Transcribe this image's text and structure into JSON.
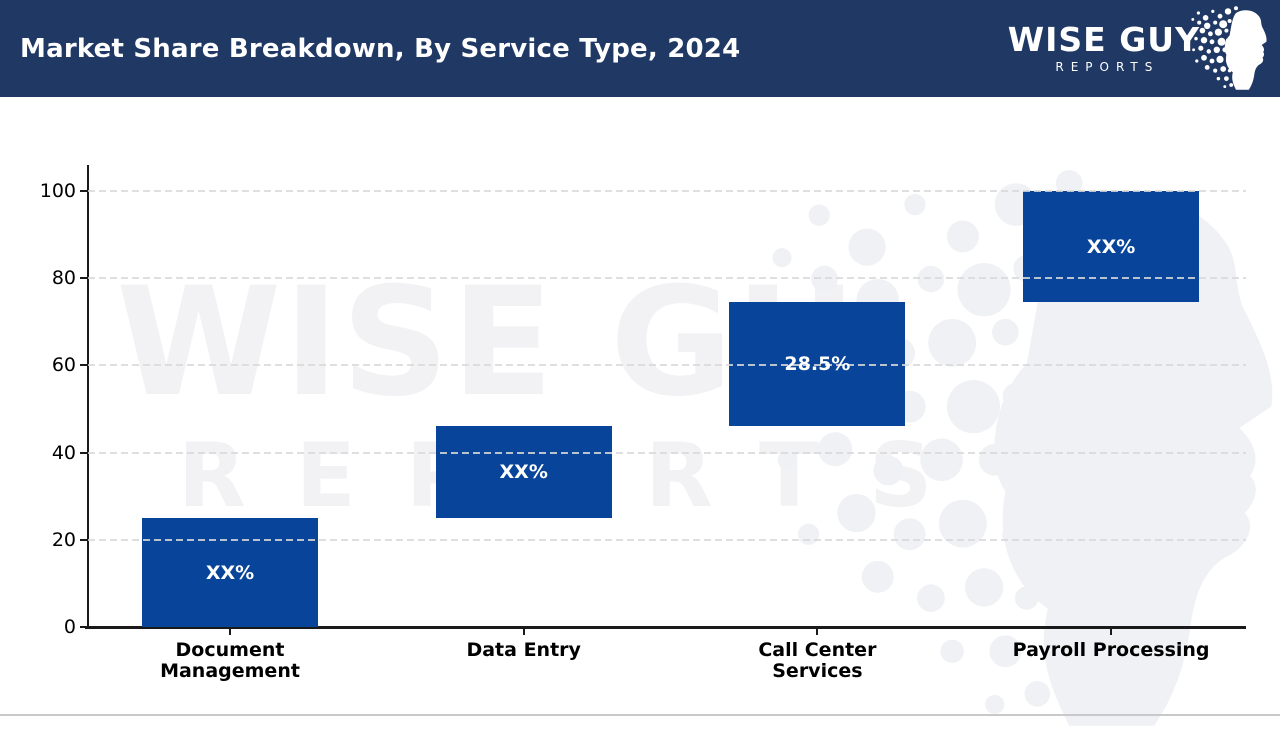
{
  "header": {
    "title": "Market Share Breakdown, By Service Type, 2024",
    "logo": {
      "line1": "WISE GUY",
      "line2": "REPORTS"
    }
  },
  "watermark": {
    "line1": "WISE GU",
    "line2": "REPORTS"
  },
  "colors": {
    "header_bg": "#203864",
    "bar": "#07449a",
    "bar_label": "#ffffff",
    "grid": "#d9d9d9",
    "axis": "#1a1a1a",
    "watermark": "#f2f2f5",
    "footer_rule": "#c9c9c9"
  },
  "chart_data": {
    "type": "bar",
    "subtype": "floating-waterfall",
    "title": "Market Share Breakdown, By Service Type, 2024",
    "xlabel": "",
    "ylabel": "",
    "categories": [
      "Document Management",
      "Data Entry",
      "Call Center Services",
      "Payroll Processing"
    ],
    "category_label_lines": [
      [
        "Document",
        "Management"
      ],
      [
        "Data Entry"
      ],
      [
        "Call Center",
        "Services"
      ],
      [
        "Payroll Processing"
      ]
    ],
    "bars": [
      {
        "category": "Document Management",
        "start": 0,
        "end": 25,
        "value": 25,
        "label": "XX%"
      },
      {
        "category": "Data Entry",
        "start": 25,
        "end": 46,
        "value": 21,
        "label": "XX%"
      },
      {
        "category": "Call Center Services",
        "start": 46,
        "end": 74.5,
        "value": 28.5,
        "label": "28.5%"
      },
      {
        "category": "Payroll Processing",
        "start": 74.5,
        "end": 100,
        "value": 25.5,
        "label": "XX%"
      }
    ],
    "yticks": [
      0,
      20,
      40,
      60,
      80,
      100
    ],
    "ylim": [
      0,
      106
    ],
    "grid": "horizontal-dashed",
    "legend": "none",
    "bar_color": "#07449a",
    "value_label_color": "#ffffff"
  }
}
